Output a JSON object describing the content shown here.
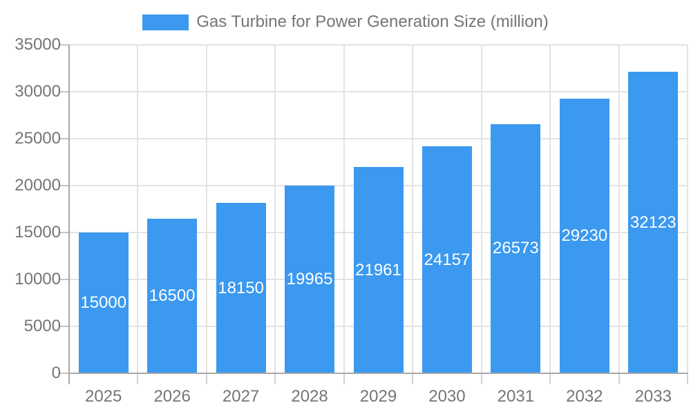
{
  "chart_data": {
    "type": "bar",
    "title": "Gas Turbine for Power Generation Size (million)",
    "legend_position": "top",
    "categories": [
      "2025",
      "2026",
      "2027",
      "2028",
      "2029",
      "2030",
      "2031",
      "2032",
      "2033"
    ],
    "series": [
      {
        "name": "Gas Turbine for Power Generation Size (million)",
        "values": [
          15000,
          16500,
          18150,
          19965,
          21961,
          24157,
          26573,
          29230,
          32123
        ]
      }
    ],
    "bar_labels": [
      "15000",
      "16500",
      "18150",
      "19965",
      "21961",
      "24157",
      "26573",
      "29230",
      "32123"
    ],
    "xlabel": "",
    "ylabel": "",
    "ylim": [
      0,
      35000
    ],
    "yticks": [
      0,
      5000,
      10000,
      15000,
      20000,
      25000,
      30000,
      35000
    ],
    "ytick_labels": [
      "0",
      "5000",
      "10000",
      "15000",
      "20000",
      "25000",
      "30000",
      "35000"
    ],
    "grid": true,
    "colors": {
      "bar": "#3b99ef",
      "bar_label": "#ffffff",
      "axis_text": "#757575",
      "grid_line": "#e3e3e3",
      "axis_line": "#a8a8a8",
      "y_tick_line": "#c4c4c4",
      "x_tick_line": "#d2d2d2",
      "background": "#ffffff"
    }
  }
}
